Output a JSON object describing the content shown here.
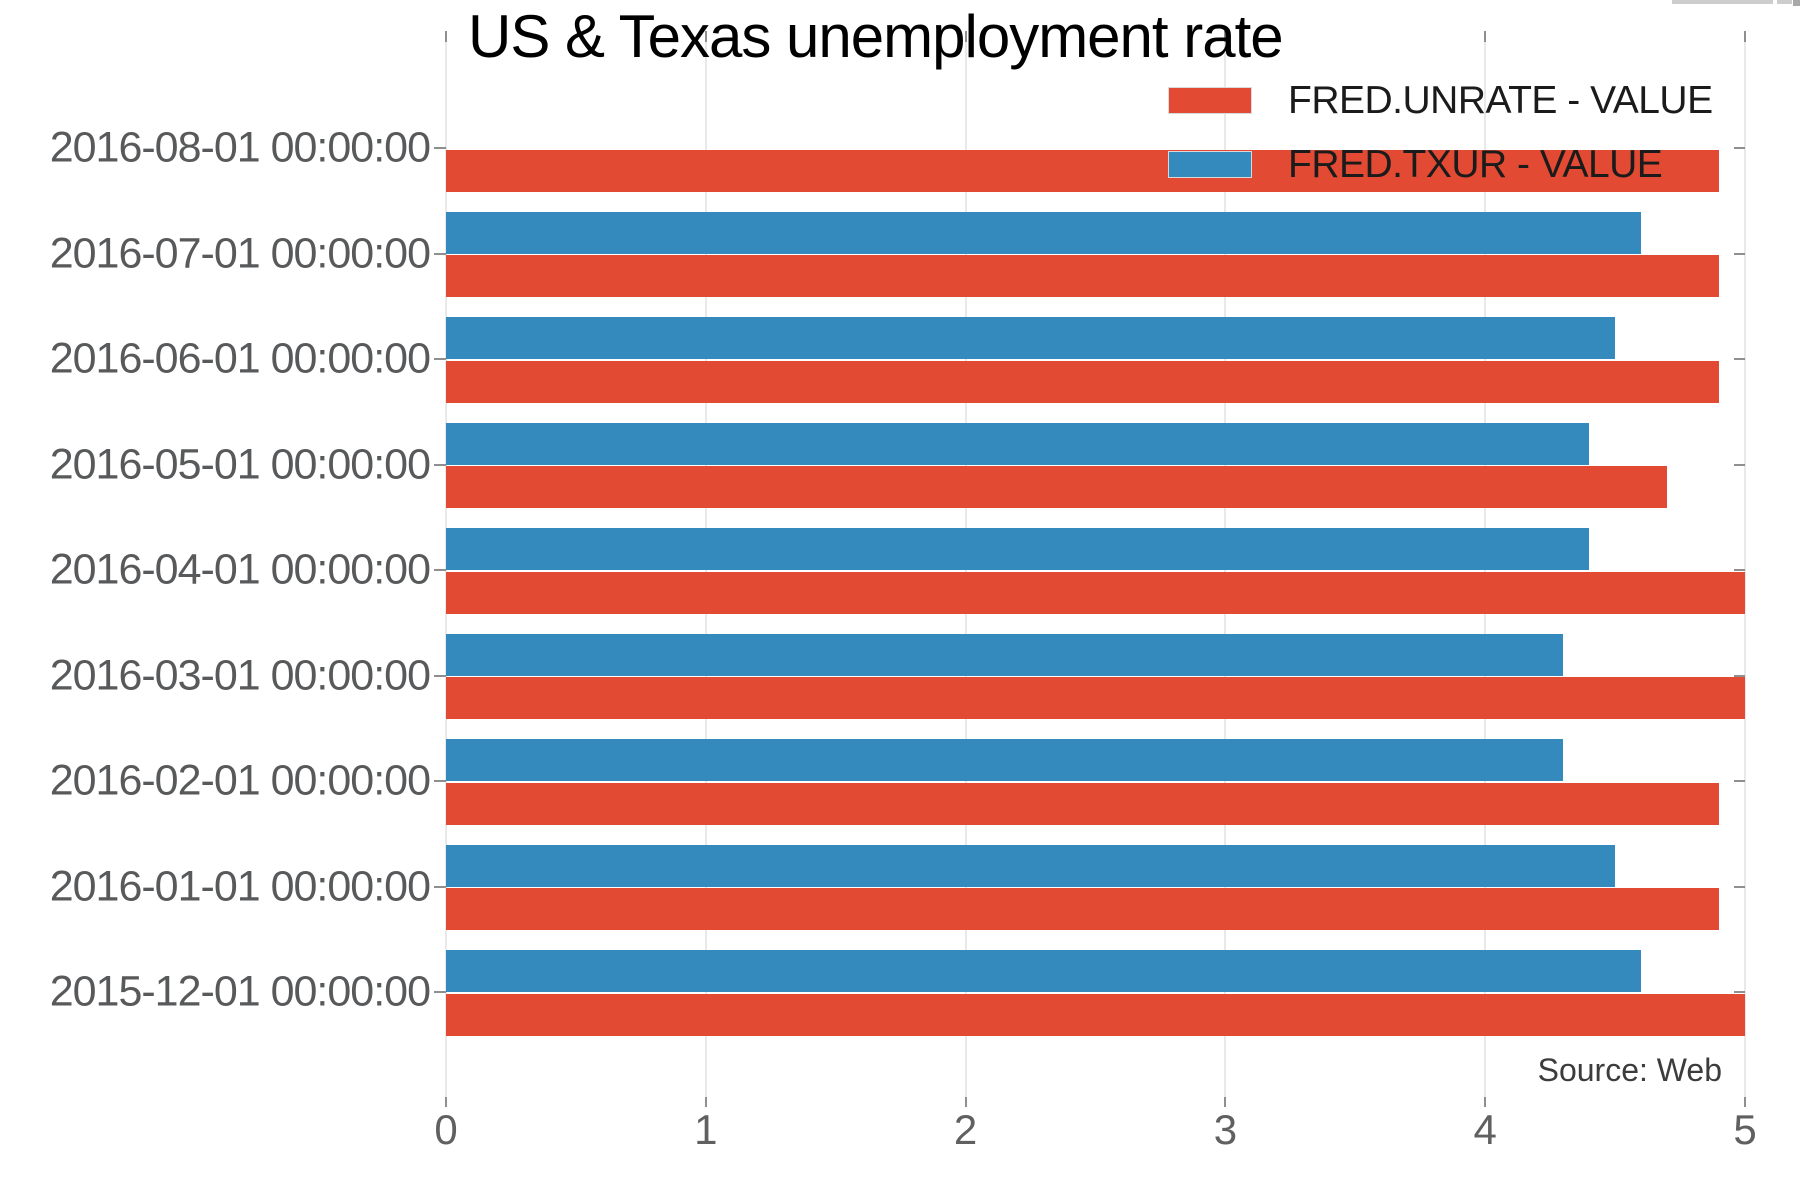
{
  "title": "US & Texas unemployment rate",
  "source_note": "Source: Web",
  "legend": {
    "position": "top-right",
    "items": [
      {
        "label": "FRED.UNRATE - VALUE",
        "color": "#e24a33"
      },
      {
        "label": "FRED.TXUR - VALUE",
        "color": "#348abd"
      }
    ]
  },
  "chart_data": {
    "type": "bar",
    "orientation": "horizontal",
    "title": "US & Texas unemployment rate",
    "categories": [
      "2016-08-01 00:00:00",
      "2016-07-01 00:00:00",
      "2016-06-01 00:00:00",
      "2016-05-01 00:00:00",
      "2016-04-01 00:00:00",
      "2016-03-01 00:00:00",
      "2016-02-01 00:00:00",
      "2016-01-01 00:00:00",
      "2015-12-01 00:00:00"
    ],
    "series": [
      {
        "name": "FRED.UNRATE - VALUE",
        "color": "#e24a33",
        "values": [
          4.9,
          4.9,
          4.9,
          4.7,
          5.0,
          5.0,
          4.9,
          4.9,
          5.0
        ]
      },
      {
        "name": "FRED.TXUR - VALUE",
        "color": "#348abd",
        "values": [
          null,
          4.6,
          4.5,
          4.4,
          4.4,
          4.3,
          4.3,
          4.5,
          4.6
        ]
      }
    ],
    "xlim": [
      0,
      5
    ],
    "x_ticks": [
      0,
      1,
      2,
      3,
      4,
      5
    ],
    "grid": "vertical",
    "legend_position": "top-right",
    "annotations": [
      "Source: Web"
    ]
  },
  "scrollbar": {
    "fragment": "top-right"
  }
}
